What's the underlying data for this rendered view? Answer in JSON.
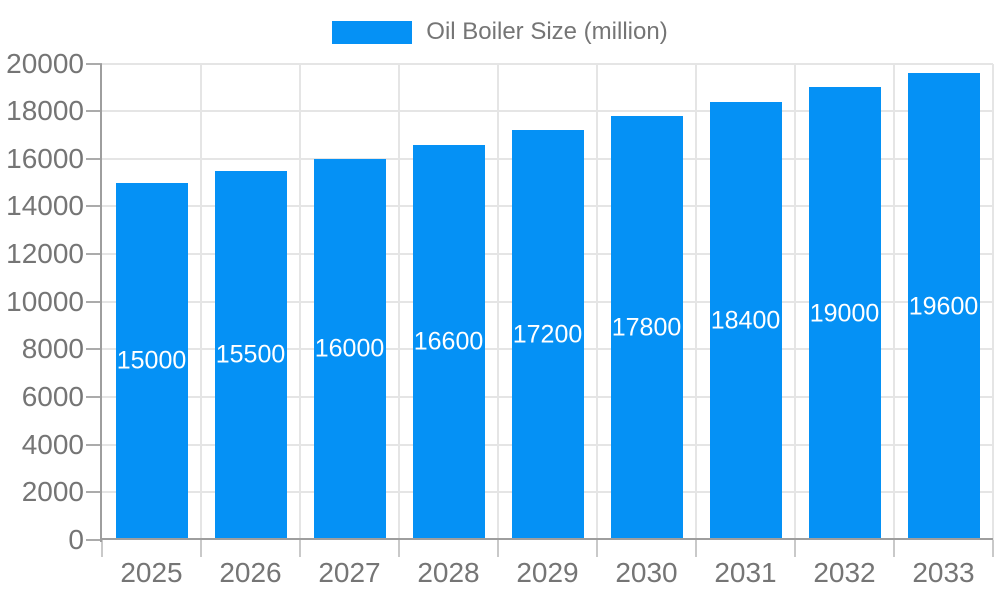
{
  "legend": {
    "label": "Oil Boiler Size (million)"
  },
  "theme": {
    "bar_color": "#0591F5",
    "axis_line_color": "#9E9E9E",
    "y_tick_color": "#ABABAB",
    "x_tick_color": "#C9C9C9",
    "grid_color": "#E5E5E5",
    "axis_text_color": "#757575",
    "bar_label_color": "#FFFFFF",
    "background": "#FFFFFF"
  },
  "chart_data": {
    "type": "bar",
    "title": "",
    "xlabel": "",
    "ylabel": "",
    "categories": [
      "2025",
      "2026",
      "2027",
      "2028",
      "2029",
      "2030",
      "2031",
      "2032",
      "2033"
    ],
    "series": [
      {
        "name": "Oil Boiler Size (million)",
        "values": [
          15000,
          15500,
          16000,
          16600,
          17200,
          17800,
          18400,
          19000,
          19600
        ]
      }
    ],
    "bar_value_labels": [
      "15000",
      "15500",
      "16000",
      "16600",
      "17200",
      "17800",
      "18400",
      "19000",
      "19600"
    ],
    "ylim": [
      0,
      20000
    ],
    "ytick_step": 2000,
    "ytick_labels": [
      "0",
      "2000",
      "4000",
      "6000",
      "8000",
      "10000",
      "12000",
      "14000",
      "16000",
      "18000",
      "20000"
    ],
    "grid": true,
    "legend_position": "top",
    "data_labels_position": "inside-middle"
  }
}
